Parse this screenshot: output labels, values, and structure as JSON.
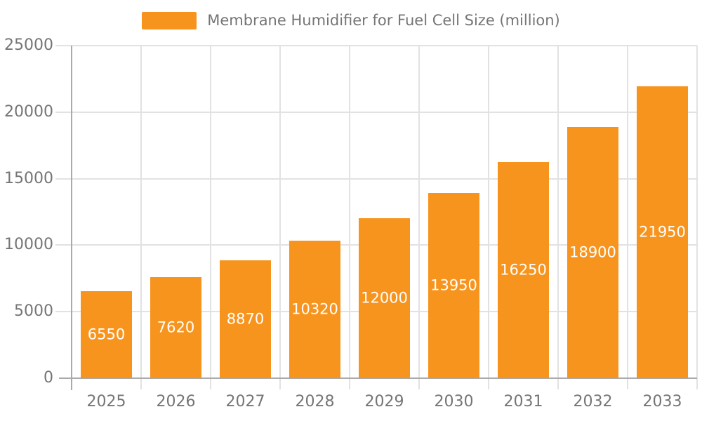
{
  "chart_data": {
    "type": "bar",
    "legend": "Membrane Humidifier for Fuel Cell Size (million)",
    "categories": [
      "2025",
      "2026",
      "2027",
      "2028",
      "2029",
      "2030",
      "2031",
      "2032",
      "2033"
    ],
    "values": [
      6550,
      7620,
      8870,
      10320,
      12000,
      13950,
      16250,
      18900,
      21950
    ],
    "title": "",
    "xlabel": "",
    "ylabel": "",
    "ylim": [
      0,
      25000
    ],
    "yticks": [
      0,
      5000,
      10000,
      15000,
      20000,
      25000
    ],
    "grid": true,
    "legend_position": "top-center",
    "colors": {
      "bar": "#f7941e",
      "value_label": "#ffffff",
      "axis_line": "#aaaaaa",
      "grid_line": "#e2e2e2",
      "tick_label": "#757575",
      "legend_text": "#757575",
      "background": "#ffffff"
    }
  }
}
